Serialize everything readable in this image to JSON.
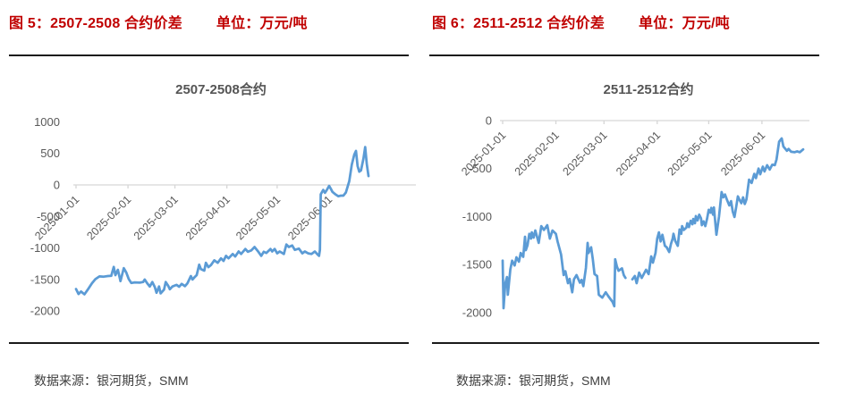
{
  "panels": [
    {
      "header_title": "图 5：2507-2508 合约价差",
      "header_unit": "单位：万元/吨",
      "source": "数据来源：银河期货，SMM"
    },
    {
      "header_title": "图 6：2511-2512 合约价差",
      "header_unit": "单位：万元/吨",
      "source": "数据来源：银河期货，SMM"
    }
  ],
  "chart_data": [
    {
      "type": "line",
      "title": "2507-2508合约",
      "xlabel": "",
      "ylabel": "",
      "x_tick_labels": [
        "2025-01-01",
        "2025-02-01",
        "2025-03-01",
        "2025-04-01",
        "2025-05-01",
        "2025-06-01"
      ],
      "x_tick_days": [
        0,
        31,
        59,
        90,
        120,
        151
      ],
      "yticks": [
        1000,
        500,
        0,
        -500,
        -1000,
        -1500,
        -2000
      ],
      "ylim": [
        -2000,
        1000
      ],
      "grid": false,
      "legend": false,
      "line_color": "#5b9bd5",
      "axis_color": "#d6d6d6",
      "text_color": "#595959",
      "points": [
        [
          0,
          -1650
        ],
        [
          1.5,
          -1730
        ],
        [
          3,
          -1690
        ],
        [
          5,
          -1735
        ],
        [
          7.5,
          -1640
        ],
        [
          9.5,
          -1560
        ],
        [
          11.5,
          -1495
        ],
        [
          14,
          -1450
        ],
        [
          16.5,
          -1455
        ],
        [
          19,
          -1445
        ],
        [
          21,
          -1440
        ],
        [
          22.5,
          -1300
        ],
        [
          23.5,
          -1430
        ],
        [
          25,
          -1345
        ],
        [
          26.5,
          -1525
        ],
        [
          28.5,
          -1320
        ],
        [
          30,
          -1390
        ],
        [
          31.5,
          -1495
        ],
        [
          33,
          -1555
        ],
        [
          35,
          -1545
        ],
        [
          38,
          -1550
        ],
        [
          40,
          -1540
        ],
        [
          41,
          -1500
        ],
        [
          42.5,
          -1560
        ],
        [
          44,
          -1610
        ],
        [
          45.5,
          -1540
        ],
        [
          47,
          -1620
        ],
        [
          48,
          -1710
        ],
        [
          49.5,
          -1610
        ],
        [
          50.5,
          -1720
        ],
        [
          52.5,
          -1660
        ],
        [
          53.5,
          -1540
        ],
        [
          55,
          -1600
        ],
        [
          56,
          -1655
        ],
        [
          57.5,
          -1610
        ],
        [
          60,
          -1585
        ],
        [
          61.5,
          -1615
        ],
        [
          63,
          -1570
        ],
        [
          65,
          -1605
        ],
        [
          66.5,
          -1560
        ],
        [
          68.5,
          -1445
        ],
        [
          69.5,
          -1500
        ],
        [
          71,
          -1455
        ],
        [
          72,
          -1430
        ],
        [
          73.5,
          -1265
        ],
        [
          74.5,
          -1335
        ],
        [
          76.5,
          -1360
        ],
        [
          77.5,
          -1235
        ],
        [
          79,
          -1305
        ],
        [
          80.5,
          -1270
        ],
        [
          82.5,
          -1195
        ],
        [
          84.5,
          -1235
        ],
        [
          86.5,
          -1165
        ],
        [
          88,
          -1205
        ],
        [
          89.5,
          -1125
        ],
        [
          91,
          -1165
        ],
        [
          93.5,
          -1095
        ],
        [
          95,
          -1135
        ],
        [
          97,
          -1055
        ],
        [
          98.5,
          -1095
        ],
        [
          101,
          -1015
        ],
        [
          102.5,
          -1060
        ],
        [
          104.5,
          -1040
        ],
        [
          106.5,
          -985
        ],
        [
          108.5,
          -1050
        ],
        [
          110.5,
          -1125
        ],
        [
          112,
          -1060
        ],
        [
          113.5,
          -1080
        ],
        [
          116,
          -1015
        ],
        [
          117,
          -1055
        ],
        [
          118.5,
          -1015
        ],
        [
          120,
          -1085
        ],
        [
          121.5,
          -1055
        ],
        [
          124,
          -1095
        ],
        [
          125.5,
          -945
        ],
        [
          127,
          -985
        ],
        [
          129,
          -960
        ],
        [
          130.5,
          -1030
        ],
        [
          133,
          -1010
        ],
        [
          135,
          -1085
        ],
        [
          136.5,
          -1055
        ],
        [
          138.5,
          -1085
        ],
        [
          140.5,
          -1095
        ],
        [
          142.5,
          -1055
        ],
        [
          144,
          -1100
        ],
        [
          145,
          -1125
        ],
        [
          145.5,
          -1030
        ],
        [
          146,
          -150
        ],
        [
          147.5,
          -80
        ],
        [
          148.5,
          -125
        ],
        [
          149.5,
          -85
        ],
        [
          151,
          -15
        ],
        [
          152,
          -60
        ],
        [
          153,
          -110
        ],
        [
          155,
          -155
        ],
        [
          156.5,
          -180
        ],
        [
          158,
          -170
        ],
        [
          159.5,
          -170
        ],
        [
          161,
          -120
        ],
        [
          163,
          60
        ],
        [
          164.5,
          320
        ],
        [
          166,
          480
        ],
        [
          167,
          540
        ],
        [
          168,
          300
        ],
        [
          169,
          210
        ],
        [
          170,
          230
        ],
        [
          171.5,
          420
        ],
        [
          172.5,
          600
        ],
        [
          173.5,
          330
        ],
        [
          174.5,
          140
        ]
      ]
    },
    {
      "type": "line",
      "title": "2511-2512合约",
      "xlabel": "",
      "ylabel": "",
      "x_tick_labels": [
        "2025-01-01",
        "2025-02-01",
        "2025-03-01",
        "2025-04-01",
        "2025-05-01",
        "2025-06-01"
      ],
      "x_tick_days": [
        0,
        31,
        59,
        90,
        120,
        151
      ],
      "yticks": [
        0,
        -500,
        -1000,
        -1500,
        -2000
      ],
      "ylim": [
        -2000,
        0
      ],
      "grid": false,
      "legend": false,
      "line_color": "#5b9bd5",
      "axis_color": "#d6d6d6",
      "text_color": "#595959",
      "points": [
        [
          0,
          -1460
        ],
        [
          0.5,
          -1955
        ],
        [
          1.5,
          -1700
        ],
        [
          2.5,
          -1630
        ],
        [
          3,
          -1815
        ],
        [
          4.5,
          -1550
        ],
        [
          5.5,
          -1460
        ],
        [
          7,
          -1510
        ],
        [
          8,
          -1425
        ],
        [
          9.5,
          -1470
        ],
        [
          10.5,
          -1380
        ],
        [
          12,
          -1420
        ],
        [
          13,
          -1210
        ],
        [
          13.5,
          -1350
        ],
        [
          14.5,
          -1300
        ],
        [
          15.5,
          -1180
        ],
        [
          16.5,
          -1230
        ],
        [
          17,
          -1165
        ],
        [
          18,
          -1220
        ],
        [
          19,
          -1145
        ],
        [
          21,
          -1275
        ],
        [
          22.5,
          -1100
        ],
        [
          24,
          -1140
        ],
        [
          26,
          -1090
        ],
        [
          27.5,
          -1230
        ],
        [
          29,
          -1145
        ],
        [
          31,
          -1180
        ],
        [
          32,
          -1260
        ],
        [
          34,
          -1395
        ],
        [
          35.5,
          -1610
        ],
        [
          36.5,
          -1570
        ],
        [
          38,
          -1695
        ],
        [
          39,
          -1650
        ],
        [
          40.5,
          -1790
        ],
        [
          41.5,
          -1655
        ],
        [
          43,
          -1610
        ],
        [
          45,
          -1690
        ],
        [
          46,
          -1660
        ],
        [
          47,
          -1725
        ],
        [
          48.5,
          -1535
        ],
        [
          49.5,
          -1275
        ],
        [
          50,
          -1380
        ],
        [
          51.5,
          -1320
        ],
        [
          52.5,
          -1445
        ],
        [
          53.5,
          -1600
        ],
        [
          55,
          -1620
        ],
        [
          56,
          -1815
        ],
        [
          58,
          -1845
        ],
        [
          60,
          -1790
        ],
        [
          61.5,
          -1830
        ],
        [
          64,
          -1890
        ],
        [
          65,
          -1935
        ],
        [
          65.5,
          -1445
        ],
        [
          66.5,
          -1520
        ],
        [
          67.5,
          -1565
        ],
        [
          69.5,
          -1540
        ],
        [
          70.5,
          -1610
        ],
        [
          71.5,
          -1640
        ],
        null,
        [
          75.5,
          -1655
        ],
        [
          77,
          -1620
        ],
        [
          78,
          -1695
        ],
        [
          79.5,
          -1585
        ],
        [
          81,
          -1640
        ],
        [
          83.5,
          -1555
        ],
        [
          85,
          -1600
        ],
        [
          86.5,
          -1415
        ],
        [
          87.5,
          -1480
        ],
        [
          89,
          -1380
        ],
        [
          90,
          -1230
        ],
        [
          91,
          -1165
        ],
        [
          92,
          -1260
        ],
        [
          93,
          -1190
        ],
        [
          94.5,
          -1305
        ],
        [
          95.5,
          -1320
        ],
        [
          97,
          -1370
        ],
        [
          98,
          -1285
        ],
        [
          99,
          -1230
        ],
        [
          99.5,
          -1180
        ],
        [
          100.5,
          -1255
        ],
        [
          102,
          -1305
        ],
        [
          103,
          -1135
        ],
        [
          104,
          -1180
        ],
        [
          104.5,
          -1100
        ],
        [
          105.5,
          -1140
        ],
        [
          107,
          -1115
        ],
        [
          107.5,
          -1070
        ],
        [
          108.5,
          -1110
        ],
        [
          109.5,
          -1045
        ],
        [
          110.5,
          -1080
        ],
        [
          111,
          -1025
        ],
        [
          112,
          -1070
        ],
        [
          112.5,
          -995
        ],
        [
          113.5,
          -1040
        ],
        [
          114.5,
          -980
        ],
        [
          115.5,
          -1020
        ],
        [
          116,
          -1090
        ],
        [
          117,
          -1050
        ],
        [
          118,
          -1100
        ],
        [
          119,
          -1025
        ],
        [
          120,
          -930
        ],
        [
          121,
          -960
        ],
        [
          121.5,
          -910
        ],
        [
          122.5,
          -980
        ],
        [
          123,
          -905
        ],
        [
          124.5,
          -1190
        ],
        [
          126,
          -1000
        ],
        [
          127.5,
          -745
        ],
        [
          128.5,
          -800
        ],
        [
          129.5,
          -770
        ],
        [
          130.5,
          -820
        ],
        [
          132,
          -885
        ],
        [
          133,
          -840
        ],
        [
          134,
          -950
        ],
        [
          135,
          -1005
        ],
        [
          136,
          -900
        ],
        [
          137,
          -790
        ],
        [
          138,
          -830
        ],
        [
          139,
          -860
        ],
        [
          140,
          -800
        ],
        [
          141,
          -870
        ],
        [
          142,
          -820
        ],
        [
          143.5,
          -615
        ],
        [
          145,
          -650
        ],
        [
          146.5,
          -555
        ],
        [
          147.5,
          -600
        ],
        [
          149,
          -500
        ],
        [
          150,
          -560
        ],
        [
          151.5,
          -480
        ],
        [
          152.5,
          -530
        ],
        [
          154,
          -465
        ],
        [
          155.5,
          -510
        ],
        [
          157,
          -460
        ],
        [
          158.5,
          -465
        ],
        [
          159.5,
          -405
        ],
        [
          161,
          -220
        ],
        [
          162.5,
          -185
        ],
        [
          163.5,
          -270
        ],
        [
          165.5,
          -315
        ],
        [
          166.5,
          -295
        ],
        [
          168,
          -325
        ],
        [
          170,
          -330
        ],
        [
          171.5,
          -320
        ],
        [
          173,
          -330
        ],
        [
          175,
          -300
        ]
      ]
    }
  ]
}
